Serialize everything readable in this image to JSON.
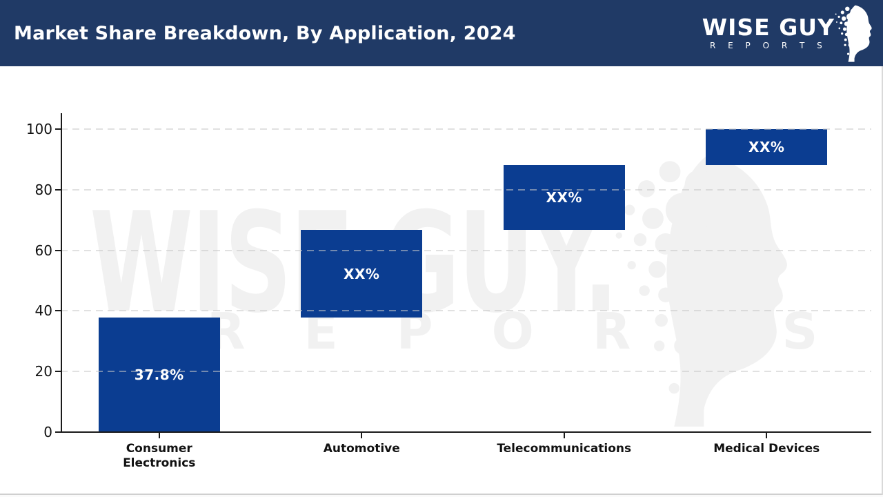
{
  "header": {
    "title": "Market Share Breakdown, By Application, 2024",
    "logo": {
      "line1": "WISE GUY",
      "line2": "R E P O R T S"
    }
  },
  "watermark": {
    "line1": "WISE GUY.",
    "line2": "R E P O R T S"
  },
  "colors": {
    "header_bg": "#203a66",
    "bar": "#0b3d91",
    "bar_label": "#ffffff",
    "grid": "#dcdcdc",
    "axis": "#1a1a1a",
    "tick_text": "#111111",
    "watermark": "#f1f1f1"
  },
  "chart_data": {
    "type": "bar",
    "subtype": "waterfall_floating_bars",
    "title": "Market Share Breakdown, By Application, 2024",
    "xlabel": "",
    "ylabel": "",
    "ylim": [
      0,
      105
    ],
    "y_ticks": [
      0,
      20,
      40,
      60,
      80,
      100
    ],
    "grid": "horizontal dashed, drawn over bars",
    "legend": "none",
    "categories": [
      "Consumer\nElectronics",
      "Automotive",
      "Telecommunications",
      "Medical Devices"
    ],
    "segments": [
      {
        "category": "Consumer Electronics",
        "start": 0,
        "end": 37.8,
        "label": "37.8%"
      },
      {
        "category": "Automotive",
        "start": 37.8,
        "end": 66.7,
        "label": "XX%"
      },
      {
        "category": "Telecommunications",
        "start": 66.7,
        "end": 88.2,
        "label": "XX%"
      },
      {
        "category": "Medical Devices",
        "start": 88.2,
        "end": 100,
        "label": "XX%"
      }
    ],
    "segment_sizes_estimated": [
      37.8,
      28.9,
      21.5,
      11.8
    ]
  }
}
